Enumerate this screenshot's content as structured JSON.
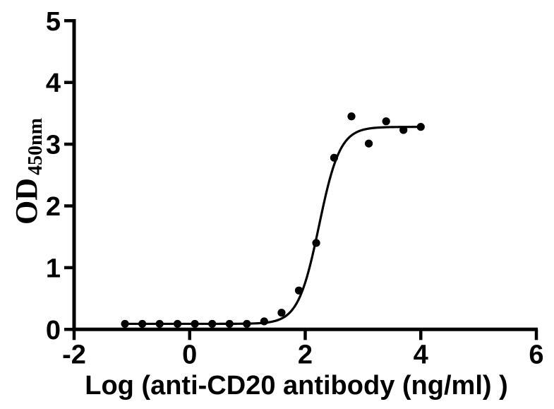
{
  "figure": {
    "background_color": "#ffffff",
    "ink_color": "#000000"
  },
  "chart_data": {
    "type": "scatter",
    "title": "",
    "xlabel": "Log （anti-CD20 antibody（ng/ml） ）",
    "ylabel": "OD450nm",
    "ylabel_main": "OD",
    "ylabel_sub": "450nm",
    "xlim": [
      -2,
      6
    ],
    "ylim": [
      0,
      5
    ],
    "x_ticks": [
      "-2",
      "0",
      "2",
      "4",
      "6"
    ],
    "y_ticks": [
      "0",
      "1",
      "2",
      "3",
      "4",
      "5"
    ],
    "grid": false,
    "legend": null,
    "marker_color": "#000000",
    "curve_color": "#000000",
    "points": [
      {
        "x": -1.12,
        "y": 0.09
      },
      {
        "x": -0.82,
        "y": 0.09
      },
      {
        "x": -0.52,
        "y": 0.09
      },
      {
        "x": -0.21,
        "y": 0.09
      },
      {
        "x": 0.09,
        "y": 0.09
      },
      {
        "x": 0.39,
        "y": 0.09
      },
      {
        "x": 0.69,
        "y": 0.09
      },
      {
        "x": 0.99,
        "y": 0.09
      },
      {
        "x": 1.29,
        "y": 0.13
      },
      {
        "x": 1.59,
        "y": 0.27
      },
      {
        "x": 1.89,
        "y": 0.63
      },
      {
        "x": 2.19,
        "y": 1.4
      },
      {
        "x": 2.5,
        "y": 2.78
      },
      {
        "x": 2.8,
        "y": 3.45
      },
      {
        "x": 3.1,
        "y": 3.01
      },
      {
        "x": 3.4,
        "y": 3.37
      },
      {
        "x": 3.7,
        "y": 3.23
      },
      {
        "x": 4.0,
        "y": 3.28
      }
    ],
    "fit_curve": {
      "model": "4PL",
      "bottom": 0.09,
      "top": 3.28,
      "logEC50": 2.24,
      "hillslope": 2.4,
      "x_start": -1.12,
      "x_end": 4.0
    }
  }
}
